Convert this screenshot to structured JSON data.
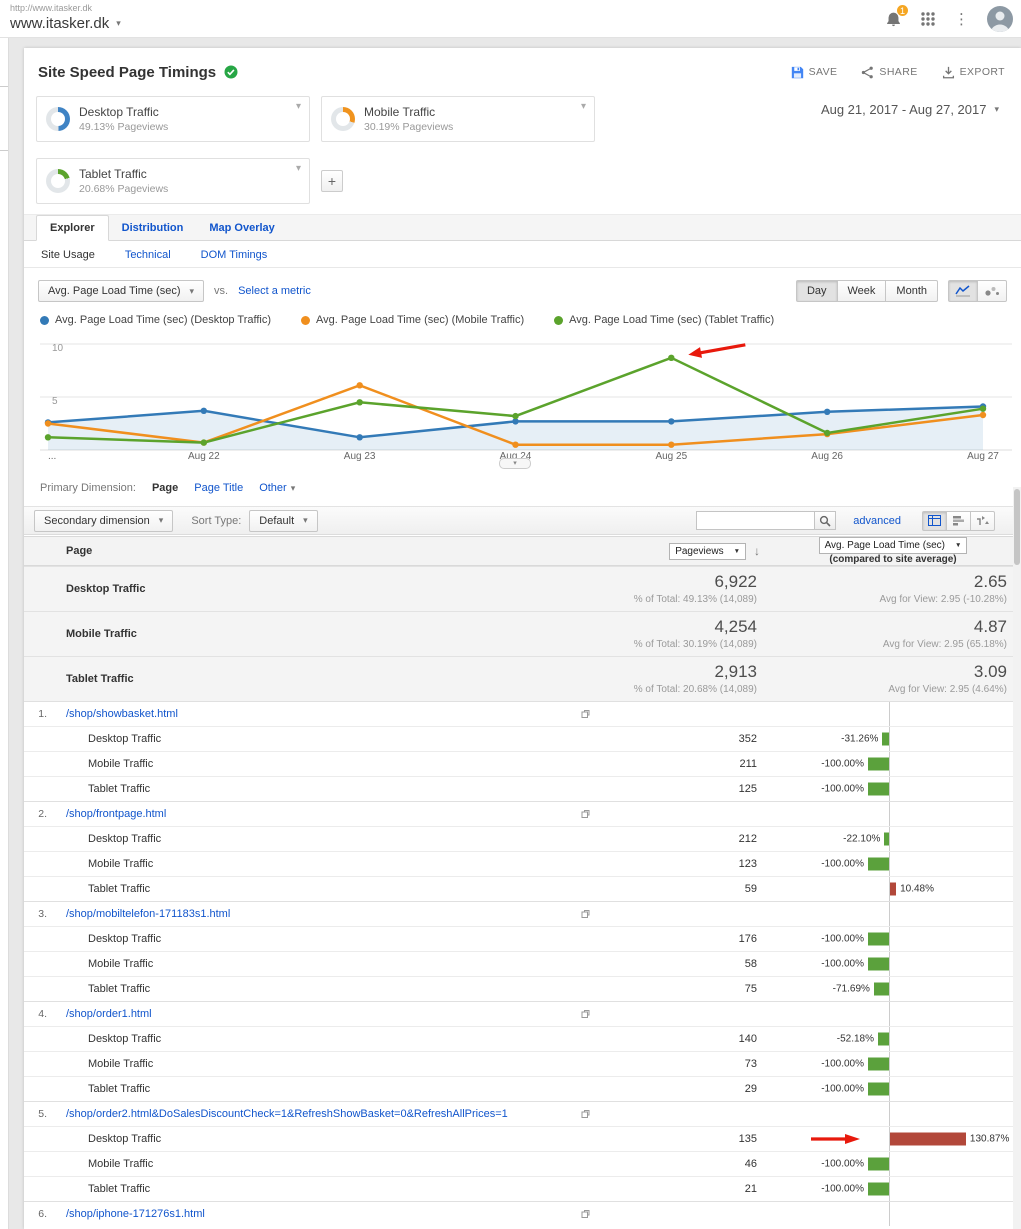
{
  "icons": {
    "caret_down": "▾",
    "select_caret": "▼",
    "sort_desc": "↓",
    "overflow_menu": "⋮",
    "add": "+",
    "handle_caret": "▾"
  },
  "topbar": {
    "url": "http://www.itasker.dk",
    "site_name": "www.itasker.dk",
    "notification_count": "1"
  },
  "header": {
    "title": "Site Speed Page Timings",
    "save_label": "SAVE",
    "share_label": "SHARE",
    "export_label": "EXPORT"
  },
  "date_range": "Aug 21, 2017 - Aug 27, 2017",
  "segments": {
    "add_label": "+",
    "cards": [
      {
        "title": "Desktop Traffic",
        "subtitle": "49.13% Pageviews",
        "percent": 49.13,
        "color": "#3f83c4"
      },
      {
        "title": "Mobile Traffic",
        "subtitle": "30.19% Pageviews",
        "percent": 30.19,
        "color": "#f0931e"
      },
      {
        "title": "Tablet Traffic",
        "subtitle": "20.68% Pageviews",
        "percent": 20.68,
        "color": "#5ba32c"
      }
    ]
  },
  "tabs": [
    {
      "label": "Explorer",
      "active": true
    },
    {
      "label": "Distribution",
      "active": false
    },
    {
      "label": "Map Overlay",
      "active": false
    }
  ],
  "subtabs": [
    {
      "label": "Site Usage",
      "active": true
    },
    {
      "label": "Technical",
      "active": false
    },
    {
      "label": "DOM Timings",
      "active": false
    }
  ],
  "metric_bar": {
    "metric": "Avg. Page Load Time (sec)",
    "vs_label": "vs.",
    "select_metric_label": "Select a metric",
    "granularity": [
      {
        "label": "Day",
        "active": true
      },
      {
        "label": "Week",
        "active": false
      },
      {
        "label": "Month",
        "active": false
      }
    ],
    "chart_buttons": [
      {
        "name": "line-chart",
        "active": true
      },
      {
        "name": "motion-chart",
        "active": false
      }
    ]
  },
  "chart_data": {
    "type": "line",
    "x": [
      "...",
      "Aug 22",
      "Aug 23",
      "Aug 24",
      "Aug 25",
      "Aug 26",
      "Aug 27"
    ],
    "ylim": [
      0,
      10
    ],
    "yticks": [
      5,
      10
    ],
    "grid": true,
    "legend_position": "top",
    "series": [
      {
        "name": "Avg. Page Load Time (sec) (Desktop Traffic)",
        "color": "#337ab7",
        "area": true,
        "values": [
          2.6,
          3.7,
          1.2,
          2.7,
          2.7,
          3.6,
          4.1
        ]
      },
      {
        "name": "Avg. Page Load Time (sec) (Mobile Traffic)",
        "color": "#f08f1e",
        "values": [
          2.5,
          0.7,
          6.1,
          0.5,
          0.5,
          1.5,
          3.3
        ]
      },
      {
        "name": "Avg. Page Load Time (sec) (Tablet Traffic)",
        "color": "#5ba32c",
        "values": [
          1.2,
          0.7,
          4.5,
          3.2,
          8.7,
          1.6,
          3.9
        ]
      }
    ],
    "annotation": {
      "type": "arrow",
      "color": "#e8190c",
      "points_to": "Tablet Traffic peak on Aug 25"
    }
  },
  "primary_dimension": {
    "label": "Primary Dimension:",
    "options": [
      {
        "label": "Page",
        "active": true
      },
      {
        "label": "Page Title",
        "active": false
      },
      {
        "label": "Other",
        "active": false,
        "caret": true
      }
    ]
  },
  "controls": {
    "secondary_dimension": "Secondary dimension",
    "sort_type_label": "Sort Type:",
    "sort_type_value": "Default",
    "search_value": "",
    "advanced_label": "advanced",
    "view_buttons": [
      {
        "name": "table-view",
        "active": true
      },
      {
        "name": "comparison-view",
        "active": false
      },
      {
        "name": "pivot-view",
        "active": false
      }
    ]
  },
  "table": {
    "columns": {
      "page": "Page",
      "pageviews": "Pageviews",
      "metric": "Avg. Page Load Time (sec)",
      "metric_note": "(compared to site average)"
    },
    "summary": [
      {
        "label": "Desktop Traffic",
        "pageviews": "6,922",
        "pv_note": "% of Total: 49.13% (14,089)",
        "metric": "2.65",
        "metric_note": "Avg for View: 2.95 (-10.28%)"
      },
      {
        "label": "Mobile Traffic",
        "pageviews": "4,254",
        "pv_note": "% of Total: 30.19% (14,089)",
        "metric": "4.87",
        "metric_note": "Avg for View: 2.95 (65.18%)"
      },
      {
        "label": "Tablet Traffic",
        "pageviews": "2,913",
        "pv_note": "% of Total: 20.68% (14,089)",
        "metric": "3.09",
        "metric_note": "Avg for View: 2.95 (4.64%)"
      }
    ],
    "rows": [
      {
        "index": "1.",
        "page": "/shop/showbasket.html",
        "segments": [
          {
            "label": "Desktop Traffic",
            "pageviews": "352",
            "delta": -31.26,
            "delta_label": "-31.26%"
          },
          {
            "label": "Mobile Traffic",
            "pageviews": "211",
            "delta": -100,
            "delta_label": "-100.00%"
          },
          {
            "label": "Tablet Traffic",
            "pageviews": "125",
            "delta": -100,
            "delta_label": "-100.00%"
          }
        ]
      },
      {
        "index": "2.",
        "page": "/shop/frontpage.html",
        "segments": [
          {
            "label": "Desktop Traffic",
            "pageviews": "212",
            "delta": -22.1,
            "delta_label": "-22.10%"
          },
          {
            "label": "Mobile Traffic",
            "pageviews": "123",
            "delta": -100,
            "delta_label": "-100.00%"
          },
          {
            "label": "Tablet Traffic",
            "pageviews": "59",
            "delta": 10.48,
            "delta_label": "10.48%"
          }
        ]
      },
      {
        "index": "3.",
        "page": "/shop/mobiltelefon-171183s1.html",
        "segments": [
          {
            "label": "Desktop Traffic",
            "pageviews": "176",
            "delta": -100,
            "delta_label": "-100.00%"
          },
          {
            "label": "Mobile Traffic",
            "pageviews": "58",
            "delta": -100,
            "delta_label": "-100.00%"
          },
          {
            "label": "Tablet Traffic",
            "pageviews": "75",
            "delta": -71.69,
            "delta_label": "-71.69%"
          }
        ]
      },
      {
        "index": "4.",
        "page": "/shop/order1.html",
        "segments": [
          {
            "label": "Desktop Traffic",
            "pageviews": "140",
            "delta": -52.18,
            "delta_label": "-52.18%"
          },
          {
            "label": "Mobile Traffic",
            "pageviews": "73",
            "delta": -100,
            "delta_label": "-100.00%"
          },
          {
            "label": "Tablet Traffic",
            "pageviews": "29",
            "delta": -100,
            "delta_label": "-100.00%"
          }
        ]
      },
      {
        "index": "5.",
        "page": "/shop/order2.html&DoSalesDiscountCheck=1&RefreshShowBasket=0&RefreshAllPrices=1",
        "segments": [
          {
            "label": "Desktop Traffic",
            "pageviews": "135",
            "delta": 130.87,
            "delta_label": "130.87%",
            "arrow": true
          },
          {
            "label": "Mobile Traffic",
            "pageviews": "46",
            "delta": -100,
            "delta_label": "-100.00%"
          },
          {
            "label": "Tablet Traffic",
            "pageviews": "21",
            "delta": -100,
            "delta_label": "-100.00%"
          }
        ]
      },
      {
        "index": "6.",
        "page": "/shop/iphone-171276s1.html",
        "segments": []
      }
    ]
  }
}
